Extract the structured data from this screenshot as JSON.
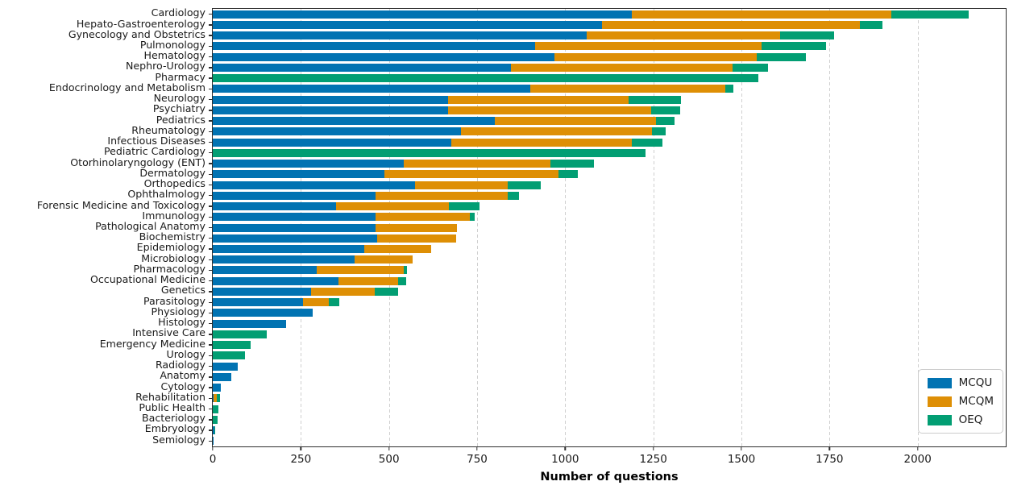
{
  "chart_data": {
    "type": "bar",
    "orientation": "horizontal",
    "stacked": true,
    "title": "",
    "xlabel": "Number of questions",
    "ylabel": "",
    "xlim": [
      0,
      2250
    ],
    "xticks": [
      0,
      250,
      500,
      750,
      1000,
      1250,
      1500,
      1750,
      2000
    ],
    "grid": "vertical-dashed",
    "legend_position": "lower-right",
    "categories": [
      "Cardiology",
      "Hepato-Gastroenterology",
      "Gynecology and Obstetrics",
      "Pulmonology",
      "Hematology",
      "Nephro-Urology",
      "Pharmacy",
      "Endocrinology and Metabolism",
      "Neurology",
      "Psychiatry",
      "Pediatrics",
      "Rheumatology",
      "Infectious Diseases",
      "Pediatric Cardiology",
      "Otorhinolaryngology (ENT)",
      "Dermatology",
      "Orthopedics",
      "Ophthalmology",
      "Forensic Medicine and Toxicology",
      "Immunology",
      "Pathological Anatomy",
      "Biochemistry",
      "Epidemiology",
      "Microbiology",
      "Pharmacology",
      "Occupational Medicine",
      "Genetics",
      "Parasitology",
      "Physiology",
      "Histology",
      "Intensive Care",
      "Emergency Medicine",
      "Urology",
      "Radiology",
      "Anatomy",
      "Cytology",
      "Rehabilitation",
      "Public Health",
      "Bacteriology",
      "Embryology",
      "Semiology"
    ],
    "series": [
      {
        "name": "MCQU",
        "color": "#0173b2",
        "values": [
          1190,
          1105,
          1060,
          915,
          970,
          845,
          0,
          900,
          667,
          667,
          800,
          704,
          676,
          0,
          543,
          486,
          575,
          461,
          349,
          461,
          461,
          466,
          431,
          402,
          296,
          356,
          278,
          257,
          283,
          208,
          0,
          0,
          0,
          72,
          52,
          22,
          2,
          0,
          0,
          5,
          1
        ]
      },
      {
        "name": "MCQM",
        "color": "#de8f05",
        "values": [
          735,
          730,
          550,
          642,
          573,
          630,
          0,
          554,
          512,
          576,
          457,
          543,
          514,
          0,
          416,
          496,
          262,
          376,
          321,
          268,
          232,
          225,
          188,
          165,
          245,
          171,
          181,
          73,
          0,
          0,
          0,
          0,
          0,
          0,
          0,
          0,
          10,
          0,
          0,
          0,
          0
        ]
      },
      {
        "name": "OEQ",
        "color": "#029e73",
        "values": [
          220,
          65,
          152,
          184,
          139,
          100,
          1547,
          23,
          150,
          83,
          53,
          37,
          87,
          1227,
          123,
          54,
          94,
          32,
          87,
          14,
          0,
          0,
          0,
          0,
          11,
          21,
          67,
          28,
          0,
          0,
          153,
          108,
          92,
          0,
          0,
          0,
          9,
          17,
          13,
          3,
          0
        ]
      }
    ]
  }
}
